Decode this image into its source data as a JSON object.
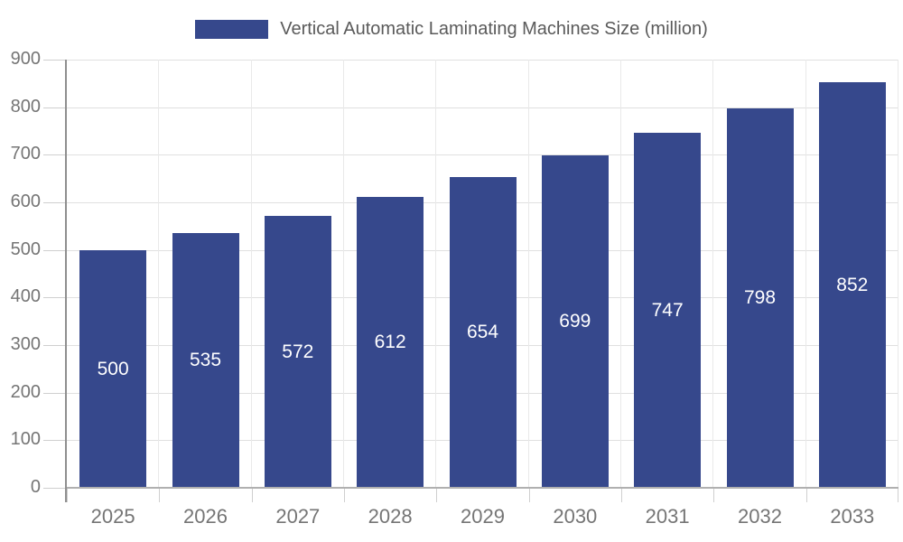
{
  "page": {
    "background": "#ffffff"
  },
  "chart_data": {
    "type": "bar",
    "title": "Vertical Automatic Laminating Machines Size (million)",
    "categories": [
      "2025",
      "2026",
      "2027",
      "2028",
      "2029",
      "2030",
      "2031",
      "2032",
      "2033"
    ],
    "values": [
      500,
      535,
      572,
      612,
      654,
      699,
      747,
      798,
      852
    ],
    "value_labels": [
      "500",
      "535",
      "572",
      "612",
      "654",
      "699",
      "747",
      "798",
      "852"
    ],
    "value_labels_position": "inside-center",
    "xlabel": "",
    "ylabel": "",
    "ylim": [
      0,
      900
    ],
    "ytick_step": 100,
    "yticks": [
      0,
      100,
      200,
      300,
      400,
      500,
      600,
      700,
      800,
      900
    ],
    "legend_entries": [
      "Vertical Automatic Laminating Machines Size (million)"
    ],
    "legend_position": "top-center",
    "grid": true,
    "colors": {
      "bar": "#36488c",
      "grid_horizontal": "#e0e0e0",
      "grid_vertical": "#e9e9e9",
      "axis_y": "#8f8f8f",
      "axis_x": "#b0b0b0",
      "tick": "#cfcfcf",
      "axis_label": "#757575",
      "legend_text": "#5a5a5a",
      "value_label": "#ffffff"
    }
  }
}
